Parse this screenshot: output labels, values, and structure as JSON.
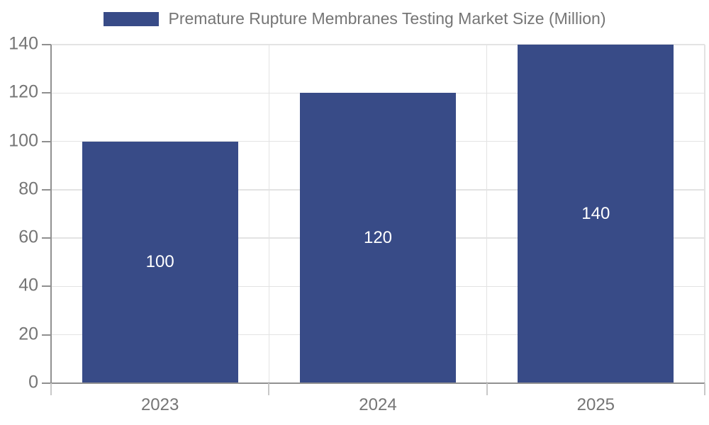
{
  "chart_data": {
    "type": "bar",
    "title": "Premature Rupture Membranes Testing Market Size (Million)",
    "series_name": "Premature Rupture Membranes Testing Market Size (Million)",
    "categories": [
      "2023",
      "2024",
      "2025"
    ],
    "values": [
      100,
      120,
      140
    ],
    "xlabel": "",
    "ylabel": "",
    "ylim": [
      0,
      140
    ],
    "yticks": [
      0,
      20,
      40,
      60,
      80,
      100,
      120,
      140
    ],
    "grid": true,
    "legend_position": "top",
    "data_labels_shown": true,
    "colors": {
      "bar": "#384b87",
      "bar_label_text": "#ffffff",
      "axis_text": "#757575",
      "axis_line": "#919191",
      "gridline": "#e3e3e3",
      "x_tick": "#c8c8c8",
      "background": "#ffffff"
    }
  }
}
